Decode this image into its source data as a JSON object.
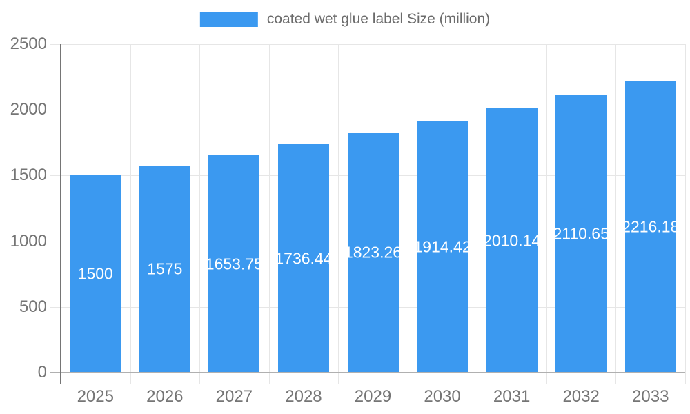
{
  "legend": {
    "label": "coated wet glue label Size (million)"
  },
  "chart_data": {
    "type": "bar",
    "title": "coated wet glue label Size (million)",
    "categories": [
      "2025",
      "2026",
      "2027",
      "2028",
      "2029",
      "2030",
      "2031",
      "2032",
      "2033"
    ],
    "values": [
      1500,
      1575,
      1653.75,
      1736.44,
      1823.26,
      1914.42,
      2010.14,
      2110.65,
      2216.18
    ],
    "value_labels": [
      "1500",
      "1575",
      "1653.75",
      "1736.44",
      "1823.26",
      "1914.42",
      "2010.14",
      "2110.65",
      "2216.18"
    ],
    "series": [
      {
        "name": "coated wet glue label Size (million)",
        "values": [
          1500,
          1575,
          1653.75,
          1736.44,
          1823.26,
          1914.42,
          2010.14,
          2110.65,
          2216.18
        ]
      }
    ],
    "xlabel": "",
    "ylabel": "",
    "ylim": [
      0,
      2500
    ],
    "yticks": [
      0,
      500,
      1000,
      1500,
      2000,
      2500
    ],
    "grid": true,
    "legend_position": "top",
    "colors": {
      "bar": "#3b99f0",
      "grid": "#e6e6e6",
      "axis_line": "#757575",
      "baseline": "#b0b0b0",
      "tick_label": "#757575",
      "value_label": "#ffffff",
      "legend_text": "#6b6b6b"
    }
  }
}
